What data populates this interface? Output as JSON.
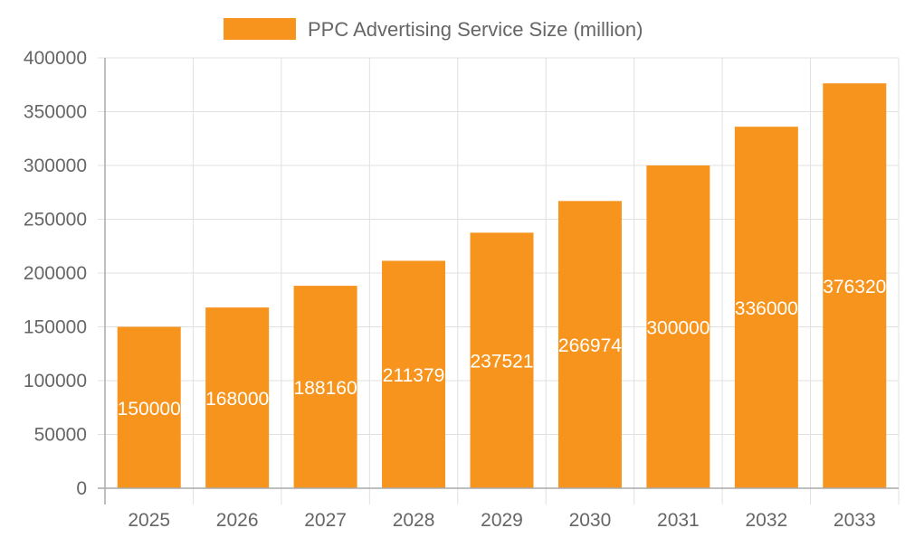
{
  "chart_data": {
    "type": "bar",
    "categories": [
      "2025",
      "2026",
      "2027",
      "2028",
      "2029",
      "2030",
      "2031",
      "2032",
      "2033"
    ],
    "series": [
      {
        "name": "PPC Advertising Service Size (million)",
        "values": [
          150000,
          168000,
          188160,
          211379,
          237521,
          266974,
          300000,
          336000,
          376320
        ],
        "color": "#f7941e"
      }
    ],
    "ylim": [
      0,
      400000
    ],
    "yticks": [
      0,
      50000,
      100000,
      150000,
      200000,
      250000,
      300000,
      350000,
      400000
    ],
    "legend": "top-center",
    "grid": true,
    "data_labels": true,
    "data_label_color": "#ffffff"
  }
}
